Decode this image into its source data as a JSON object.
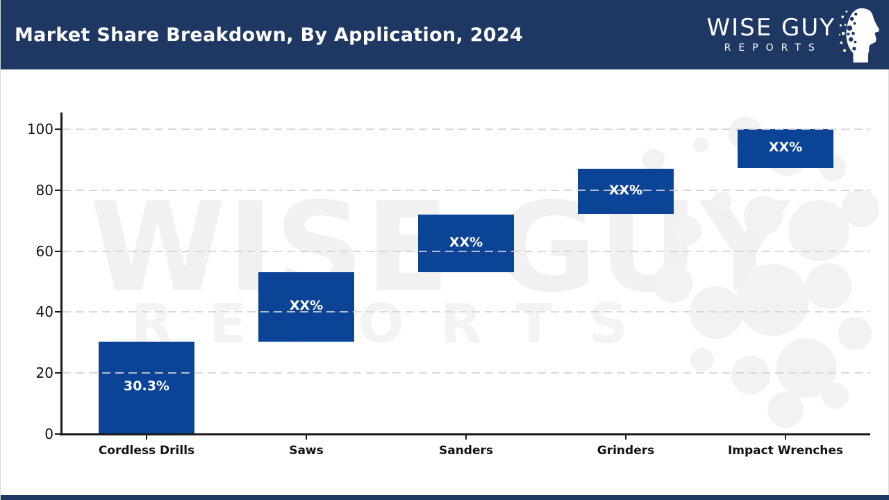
{
  "header": {
    "title": "Market Share Breakdown, By Application, 2024",
    "logo": {
      "line1": "WISE GUY",
      "line2": "REPORTS"
    }
  },
  "watermark": {
    "line1": "WISE GUY",
    "line2": "REPORTS"
  },
  "footer": {},
  "chart_data": {
    "type": "bar",
    "subtype": "waterfall",
    "title": "Market Share Breakdown, By Application, 2024",
    "categories": [
      "Cordless Drills",
      "Saws",
      "Sanders",
      "Grinders",
      "Impact Wrenches"
    ],
    "segments": [
      {
        "category": "Cordless Drills",
        "start": 0,
        "end": 30.3,
        "label": "30.3%"
      },
      {
        "category": "Saws",
        "start": 30.3,
        "end": 53.0,
        "label": "XX%"
      },
      {
        "category": "Sanders",
        "start": 53.0,
        "end": 71.9,
        "label": "XX%"
      },
      {
        "category": "Grinders",
        "start": 72.1,
        "end": 87.0,
        "label": "XX%"
      },
      {
        "category": "Impact Wrenches",
        "start": 87.3,
        "end": 100,
        "label": "XX%"
      }
    ],
    "ylim": [
      0,
      100
    ],
    "yticks": [
      0,
      20,
      40,
      60,
      80,
      100
    ],
    "grid": "horizontal-dashed",
    "legend": "none",
    "xlabel": "",
    "ylabel": "",
    "bar_color": "#0b4397",
    "bar_label_color": "#ffffff",
    "axis_color": "#1a1a1a",
    "header_bg": "#1f3763"
  }
}
